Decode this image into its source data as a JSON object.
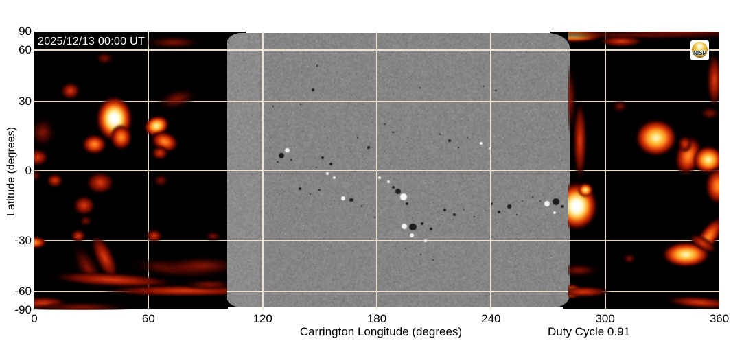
{
  "header": {
    "datetime": "2025/12/13 00:00 UT",
    "logo_text": "NISP"
  },
  "axes": {
    "xlabel": "Carrington Longitude (degrees)",
    "ylabel": "Latitude (degrees)",
    "footer_right": "Duty Cycle 0.91",
    "x_ticks": [
      0,
      60,
      120,
      180,
      240,
      300,
      360
    ],
    "y_ticks": [
      90,
      60,
      30,
      0,
      -30,
      -60,
      -90
    ],
    "x_gridlines": [
      60,
      120,
      180,
      240,
      300
    ],
    "y_gridlines": [
      60,
      30,
      0,
      -30,
      -60
    ],
    "x_range": [
      0,
      360
    ],
    "y_range": [
      -90,
      90
    ],
    "projection": "sine-latitude"
  },
  "colors": {
    "page_bg": "#ffffff",
    "farside_bg": "#000000",
    "magnetogram_gray": "#868686",
    "gridline": "#f2e7d3",
    "tick_text": "#000000",
    "datetime_text": "#ffffff",
    "hot_core": "#ffffff",
    "hot_mid": "#ff9522",
    "hot_outer": "#8c0f02"
  },
  "chart_data": {
    "type": "heatmap",
    "title": "2025/12/13 00:00 UT",
    "xlabel": "Carrington Longitude (degrees)",
    "ylabel": "Latitude (degrees)",
    "x_range": [
      0,
      360
    ],
    "y_range": [
      -90,
      90
    ],
    "projection": "sine-latitude",
    "duty_cycle": 0.91,
    "grid": "on",
    "layers": {
      "frontside_magnetogram": {
        "lon_range": [
          101,
          281
        ],
        "style": "gray with black/white magnetic flux speckles"
      },
      "farside_helioseismic": {
        "lon_ranges": [
          [
            0,
            101
          ],
          [
            281,
            360
          ]
        ],
        "style": "black with red-orange-yellow acoustic blobs (hot colormap)"
      }
    },
    "farside_blobs": {
      "columns": [
        "lon",
        "lat",
        "w",
        "h",
        "intensity",
        "rot"
      ],
      "rows": [
        [
          73,
          67,
          42,
          9,
          "faint",
          0
        ],
        [
          37,
          54,
          14,
          10,
          "faint",
          0
        ],
        [
          19,
          35,
          14,
          12,
          "dim",
          0
        ],
        [
          42,
          22,
          26,
          32,
          "brightest",
          0
        ],
        [
          45.5,
          14,
          16,
          18,
          "medium",
          0
        ],
        [
          64,
          19,
          18,
          14,
          "bright",
          -20
        ],
        [
          68.5,
          12,
          20,
          14,
          "medium",
          20
        ],
        [
          66,
          7.5,
          12,
          10,
          "dim",
          0
        ],
        [
          4.5,
          16,
          20,
          22,
          "faint",
          0
        ],
        [
          31.5,
          11,
          18,
          14,
          "medium",
          0
        ],
        [
          1.5,
          5.5,
          16,
          12,
          "dim",
          0
        ],
        [
          34.5,
          -5,
          20,
          16,
          "dim",
          0
        ],
        [
          10.8,
          -4,
          12,
          10,
          "dim",
          0
        ],
        [
          0.5,
          -2,
          10,
          8,
          "faint",
          0
        ],
        [
          26.3,
          -14.5,
          16,
          14,
          "dim",
          0
        ],
        [
          66.5,
          -4,
          12,
          10,
          "faint",
          0
        ],
        [
          27,
          -21,
          10,
          8,
          "faint",
          0
        ],
        [
          23,
          -28,
          11,
          9,
          "dim",
          0
        ],
        [
          63,
          -28,
          12,
          9,
          "dim",
          0
        ],
        [
          94,
          -28,
          12,
          8,
          "faint",
          0
        ],
        [
          0.5,
          -31,
          16,
          9,
          "medium",
          0
        ],
        [
          28,
          -44,
          16,
          38,
          "faint",
          -30
        ],
        [
          37,
          -38.5,
          13,
          36,
          "dim",
          -25
        ],
        [
          41.5,
          -51.5,
          88,
          10,
          "dim",
          3
        ],
        [
          79.5,
          -59.5,
          118,
          8,
          "dim",
          0
        ],
        [
          75,
          -44.5,
          72,
          13,
          "faint",
          5
        ],
        [
          88.5,
          -43,
          60,
          14,
          "faint",
          0
        ],
        [
          92,
          -55,
          40,
          8,
          "faint",
          0
        ],
        [
          75,
          31,
          30,
          14,
          "faint",
          -15
        ],
        [
          5,
          -72,
          34,
          9,
          "dim",
          0
        ],
        [
          25,
          -79,
          72,
          8,
          "faint",
          0
        ],
        [
          326.8,
          13.7,
          30,
          26,
          "bright",
          0
        ],
        [
          343.8,
          6.2,
          18,
          28,
          "medium",
          15
        ],
        [
          342,
          11,
          10,
          12,
          "dim",
          0
        ],
        [
          354.2,
          4.5,
          22,
          20,
          "bright",
          0
        ],
        [
          285,
          -14.8,
          30,
          34,
          "brightest",
          0
        ],
        [
          289.7,
          -8,
          11,
          10,
          "bright",
          0
        ],
        [
          359.2,
          -6.2,
          18,
          26,
          "medium",
          0
        ],
        [
          353.8,
          -28.6,
          13,
          36,
          "medium",
          35
        ],
        [
          342.5,
          -37,
          34,
          18,
          "bright",
          0
        ],
        [
          351.5,
          -31.5,
          22,
          9,
          "dim",
          30
        ],
        [
          312.6,
          -39,
          10,
          8,
          "faint",
          0
        ],
        [
          282.8,
          -60.3,
          13,
          10,
          "bright",
          0
        ],
        [
          288.5,
          -60.3,
          38,
          8,
          "dim",
          0
        ],
        [
          286,
          -45.5,
          30,
          10,
          "faint",
          0
        ],
        [
          350,
          -71,
          48,
          8,
          "dim",
          4
        ],
        [
          286.8,
          12.5,
          10,
          56,
          "dim",
          0
        ],
        [
          281.7,
          31,
          9,
          50,
          "faint",
          0
        ],
        [
          357.4,
          40.6,
          11,
          38,
          "dim",
          0
        ],
        [
          283.9,
          76,
          42,
          9,
          "bright",
          0
        ],
        [
          308.5,
          68.6,
          32,
          8,
          "dim",
          0
        ],
        [
          324,
          78,
          170,
          7,
          "faint",
          0
        ],
        [
          340,
          85,
          120,
          6,
          "faint",
          0
        ],
        [
          307.7,
          27.5,
          12,
          9,
          "faint",
          0
        ],
        [
          355,
          24.4,
          16,
          10,
          "faint",
          0
        ]
      ]
    },
    "magnetogram_flux": {
      "columns": [
        "lon",
        "lat",
        "polarity",
        "size"
      ],
      "rows": [
        [
          146.5,
          35.5,
          "b",
          3
        ],
        [
          140,
          28.5,
          "b",
          2
        ],
        [
          125.5,
          27.6,
          "b",
          2
        ],
        [
          133,
          8.5,
          "w",
          5
        ],
        [
          130,
          6.2,
          "b",
          6
        ],
        [
          128,
          3.7,
          "b",
          2
        ],
        [
          135,
          4.5,
          "b",
          2
        ],
        [
          151.5,
          5.4,
          "b",
          3
        ],
        [
          155.8,
          2.8,
          "b",
          3
        ],
        [
          148.3,
          1.4,
          "b",
          2
        ],
        [
          162.3,
          -11.4,
          "w",
          4
        ],
        [
          166.7,
          -12,
          "b",
          4
        ],
        [
          139.6,
          -7.4,
          "b",
          3
        ],
        [
          145,
          -9.6,
          "b",
          2
        ],
        [
          150,
          -7.9,
          "b",
          2
        ],
        [
          154,
          -1.1,
          "w",
          3
        ],
        [
          157.6,
          -2.8,
          "w",
          3
        ],
        [
          169.9,
          13.7,
          "b",
          2
        ],
        [
          175.7,
          9.6,
          "b",
          3
        ],
        [
          180,
          4.5,
          "b",
          2
        ],
        [
          181.4,
          -2.8,
          "w",
          3
        ],
        [
          186.1,
          -4.5,
          "w",
          3
        ],
        [
          184.3,
          19.6,
          "b",
          2
        ],
        [
          188.6,
          16,
          "b",
          2
        ],
        [
          148.6,
          48.9,
          "b",
          2
        ],
        [
          202.7,
          36.6,
          "b",
          2
        ],
        [
          236.3,
          37.3,
          "b",
          2
        ],
        [
          242.7,
          35.2,
          "b",
          2
        ],
        [
          188.6,
          -6.8,
          "b",
          3
        ],
        [
          194,
          -10.8,
          "w",
          7
        ],
        [
          191.2,
          -8.5,
          "b",
          6
        ],
        [
          195.9,
          -13.7,
          "b",
          3
        ],
        [
          198.8,
          -23.8,
          "b",
          8
        ],
        [
          194.4,
          -23.5,
          "w",
          6
        ],
        [
          198.4,
          -27.6,
          "w",
          5
        ],
        [
          203.8,
          -22.3,
          "b",
          3
        ],
        [
          208.5,
          -24.7,
          "b",
          3
        ],
        [
          215.7,
          -16.3,
          "b",
          3
        ],
        [
          220.8,
          -18.4,
          "b",
          3
        ],
        [
          225.8,
          -16,
          "b",
          2
        ],
        [
          231.2,
          -19.3,
          "b",
          2
        ],
        [
          240.2,
          -13.7,
          "b",
          3
        ],
        [
          244.2,
          -17.2,
          "b",
          3
        ],
        [
          249.6,
          -14.9,
          "b",
          4
        ],
        [
          253.6,
          -18.4,
          "b",
          2
        ],
        [
          256.5,
          -12.5,
          "b",
          2
        ],
        [
          269.5,
          -13.7,
          "w",
          6
        ],
        [
          274.2,
          -12.8,
          "b",
          7
        ],
        [
          277.4,
          -14.9,
          "b",
          3
        ],
        [
          261.9,
          -10.8,
          "b",
          2
        ],
        [
          265.9,
          -12.5,
          "b",
          2
        ],
        [
          273.4,
          -17.5,
          "w",
          3
        ],
        [
          218.3,
          12.5,
          "b",
          3
        ],
        [
          222.9,
          9.6,
          "b",
          2
        ],
        [
          213.2,
          15.1,
          "b",
          2
        ],
        [
          227.6,
          13.7,
          "b",
          2
        ],
        [
          234.8,
          11.4,
          "w",
          3
        ],
        [
          239.2,
          9.3,
          "w",
          2
        ],
        [
          195.2,
          -33.8,
          "b",
          2
        ],
        [
          203.1,
          -36.9,
          "b",
          2
        ],
        [
          209.6,
          -39.8,
          "b",
          2
        ],
        [
          178.9,
          -19.6,
          "b",
          2
        ],
        [
          172.1,
          -14.6,
          "b",
          2
        ],
        [
          205.6,
          -30.2,
          "w",
          3
        ]
      ]
    }
  }
}
